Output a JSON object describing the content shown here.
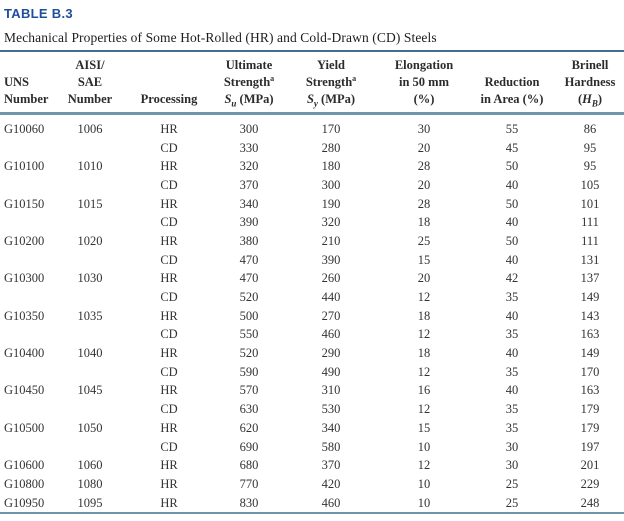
{
  "colors": {
    "title_blue": "#1d4f9c",
    "rule_thin": "#416e93",
    "rule_thick": "#6e95ac",
    "header_text": "#2c2c2c",
    "body_text": "#333333"
  },
  "table": {
    "title": "TABLE B.3",
    "caption": "Mechanical Properties of Some Hot-Rolled (HR) and Cold-Drawn (CD) Steels",
    "columns": [
      {
        "id": "uns-number",
        "lines": [
          "UNS",
          "Number"
        ]
      },
      {
        "id": "aisi-sae-number",
        "lines": [
          "AISI/",
          "SAE",
          "Number"
        ]
      },
      {
        "id": "processing",
        "lines": [
          "Processing"
        ]
      },
      {
        "id": "ultimate-strength",
        "lines": [
          "Ultimate",
          "Strength^{a}",
          "*S*_{*u*} (MPa)"
        ]
      },
      {
        "id": "yield-strength",
        "lines": [
          "Yield",
          "Strength^{a}",
          "*S*_{*y*} (MPa)"
        ]
      },
      {
        "id": "elongation",
        "lines": [
          "Elongation",
          "in 50 mm",
          "(%)"
        ]
      },
      {
        "id": "reduction-in-area",
        "lines": [
          "Reduction",
          "in Area (%)"
        ]
      },
      {
        "id": "brinell-hardness",
        "lines": [
          "Brinell",
          "Hardness",
          "(*H*_{*B*})"
        ]
      }
    ],
    "rows": [
      [
        "G10060",
        "1006",
        "HR",
        "300",
        "170",
        "30",
        "55",
        "86"
      ],
      [
        "",
        "",
        "CD",
        "330",
        "280",
        "20",
        "45",
        "95"
      ],
      [
        "G10100",
        "1010",
        "HR",
        "320",
        "180",
        "28",
        "50",
        "95"
      ],
      [
        "",
        "",
        "CD",
        "370",
        "300",
        "20",
        "40",
        "105"
      ],
      [
        "G10150",
        "1015",
        "HR",
        "340",
        "190",
        "28",
        "50",
        "101"
      ],
      [
        "",
        "",
        "CD",
        "390",
        "320",
        "18",
        "40",
        "111"
      ],
      [
        "G10200",
        "1020",
        "HR",
        "380",
        "210",
        "25",
        "50",
        "111"
      ],
      [
        "",
        "",
        "CD",
        "470",
        "390",
        "15",
        "40",
        "131"
      ],
      [
        "G10300",
        "1030",
        "HR",
        "470",
        "260",
        "20",
        "42",
        "137"
      ],
      [
        "",
        "",
        "CD",
        "520",
        "440",
        "12",
        "35",
        "149"
      ],
      [
        "G10350",
        "1035",
        "HR",
        "500",
        "270",
        "18",
        "40",
        "143"
      ],
      [
        "",
        "",
        "CD",
        "550",
        "460",
        "12",
        "35",
        "163"
      ],
      [
        "G10400",
        "1040",
        "HR",
        "520",
        "290",
        "18",
        "40",
        "149"
      ],
      [
        "",
        "",
        "CD",
        "590",
        "490",
        "12",
        "35",
        "170"
      ],
      [
        "G10450",
        "1045",
        "HR",
        "570",
        "310",
        "16",
        "40",
        "163"
      ],
      [
        "",
        "",
        "CD",
        "630",
        "530",
        "12",
        "35",
        "179"
      ],
      [
        "G10500",
        "1050",
        "HR",
        "620",
        "340",
        "15",
        "35",
        "179"
      ],
      [
        "",
        "",
        "CD",
        "690",
        "580",
        "10",
        "30",
        "197"
      ],
      [
        "G10600",
        "1060",
        "HR",
        "680",
        "370",
        "12",
        "30",
        "201"
      ],
      [
        "G10800",
        "1080",
        "HR",
        "770",
        "420",
        "10",
        "25",
        "229"
      ],
      [
        "G10950",
        "1095",
        "HR",
        "830",
        "460",
        "10",
        "25",
        "248"
      ]
    ]
  }
}
